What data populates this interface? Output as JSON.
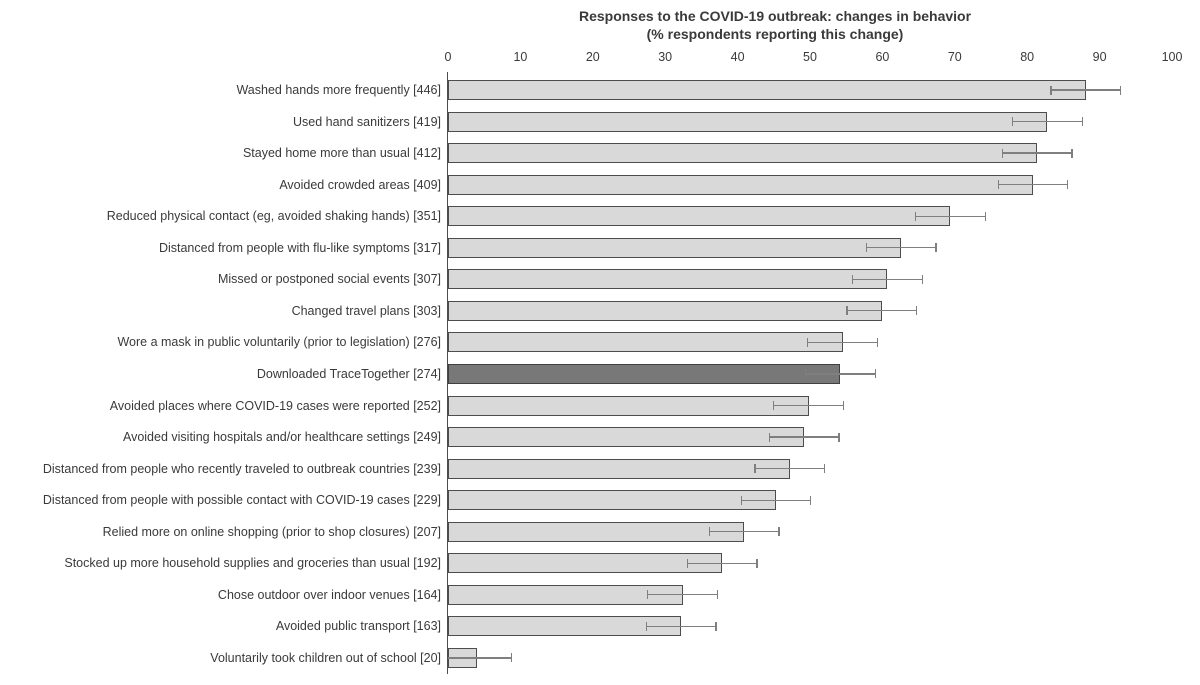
{
  "chart_data": {
    "type": "bar",
    "orientation": "horizontal",
    "title": "Responses to the COVID-19 outbreak: changes in behavior",
    "subtitle": "(% respondents reporting this change)",
    "xlabel": "",
    "ylabel": "",
    "xlim": [
      0,
      100
    ],
    "xticks": [
      0,
      10,
      20,
      30,
      40,
      50,
      60,
      70,
      80,
      90,
      100
    ],
    "axis_side": "top",
    "grid": false,
    "legend": false,
    "error_bars": "symmetric, approx. +/-4.8 percentage points",
    "bars": [
      {
        "label": "Washed hands more frequently [446]",
        "n": 446,
        "value": 88.1,
        "ci_low": 83.3,
        "ci_high": 92.9,
        "highlight": false
      },
      {
        "label": "Used hand sanitizers [419]",
        "n": 419,
        "value": 82.8,
        "ci_low": 78.0,
        "ci_high": 87.6,
        "highlight": false
      },
      {
        "label": "Stayed home more than usual [412]",
        "n": 412,
        "value": 81.4,
        "ci_low": 76.6,
        "ci_high": 86.2,
        "highlight": false
      },
      {
        "label": "Avoided crowded areas [409]",
        "n": 409,
        "value": 80.8,
        "ci_low": 76.0,
        "ci_high": 85.6,
        "highlight": false
      },
      {
        "label": "Reduced physical contact (eg, avoided shaking hands) [351]",
        "n": 351,
        "value": 69.4,
        "ci_low": 64.6,
        "ci_high": 74.2,
        "highlight": false
      },
      {
        "label": "Distanced from people with flu-like symptoms [317]",
        "n": 317,
        "value": 62.6,
        "ci_low": 57.8,
        "ci_high": 67.4,
        "highlight": false
      },
      {
        "label": "Missed or postponed social events [307]",
        "n": 307,
        "value": 60.7,
        "ci_low": 55.9,
        "ci_high": 65.5,
        "highlight": false
      },
      {
        "label": "Changed travel plans [303]",
        "n": 303,
        "value": 59.9,
        "ci_low": 55.1,
        "ci_high": 64.7,
        "highlight": false
      },
      {
        "label": "Wore a mask in public voluntarily (prior to legislation) [276]",
        "n": 276,
        "value": 54.5,
        "ci_low": 49.7,
        "ci_high": 59.3,
        "highlight": false
      },
      {
        "label": "Downloaded TraceTogether [274]",
        "n": 274,
        "value": 54.2,
        "ci_low": 49.4,
        "ci_high": 59.0,
        "highlight": true
      },
      {
        "label": "Avoided places where COVID-19 cases were reported [252]",
        "n": 252,
        "value": 49.8,
        "ci_low": 45.0,
        "ci_high": 54.6,
        "highlight": false
      },
      {
        "label": "Avoided visiting hospitals and/or healthcare settings [249]",
        "n": 249,
        "value": 49.2,
        "ci_low": 44.4,
        "ci_high": 54.0,
        "highlight": false
      },
      {
        "label": "Distanced from people who recently traveled to outbreak countries [239]",
        "n": 239,
        "value": 47.2,
        "ci_low": 42.4,
        "ci_high": 52.0,
        "highlight": false
      },
      {
        "label": "Distanced from people with possible contact with COVID-19 cases [229]",
        "n": 229,
        "value": 45.3,
        "ci_low": 40.5,
        "ci_high": 50.1,
        "highlight": false
      },
      {
        "label": "Relied more on online shopping (prior to shop closures) [207]",
        "n": 207,
        "value": 40.9,
        "ci_low": 36.1,
        "ci_high": 45.7,
        "highlight": false
      },
      {
        "label": "Stocked up more household supplies and groceries than usual [192]",
        "n": 192,
        "value": 37.9,
        "ci_low": 33.1,
        "ci_high": 42.7,
        "highlight": false
      },
      {
        "label": "Chose outdoor over indoor venues [164]",
        "n": 164,
        "value": 32.4,
        "ci_low": 27.6,
        "ci_high": 37.2,
        "highlight": false
      },
      {
        "label": "Avoided public transport [163]",
        "n": 163,
        "value": 32.2,
        "ci_low": 27.4,
        "ci_high": 37.0,
        "highlight": false
      },
      {
        "label": "Voluntarily took children out of school [20]",
        "n": 20,
        "value": 4.0,
        "ci_low": 0,
        "ci_high": 8.8,
        "highlight": false
      }
    ]
  },
  "colors": {
    "background": "#ffffff",
    "text": "#3a3a3a",
    "axis_line": "#4d4d4d",
    "bar_fill": "#d9d9d9",
    "bar_border": "#4d4d4d",
    "highlight_bar_fill": "#787878",
    "highlight_bar_border": "#404040",
    "error_bar": "#7f7f7f"
  }
}
